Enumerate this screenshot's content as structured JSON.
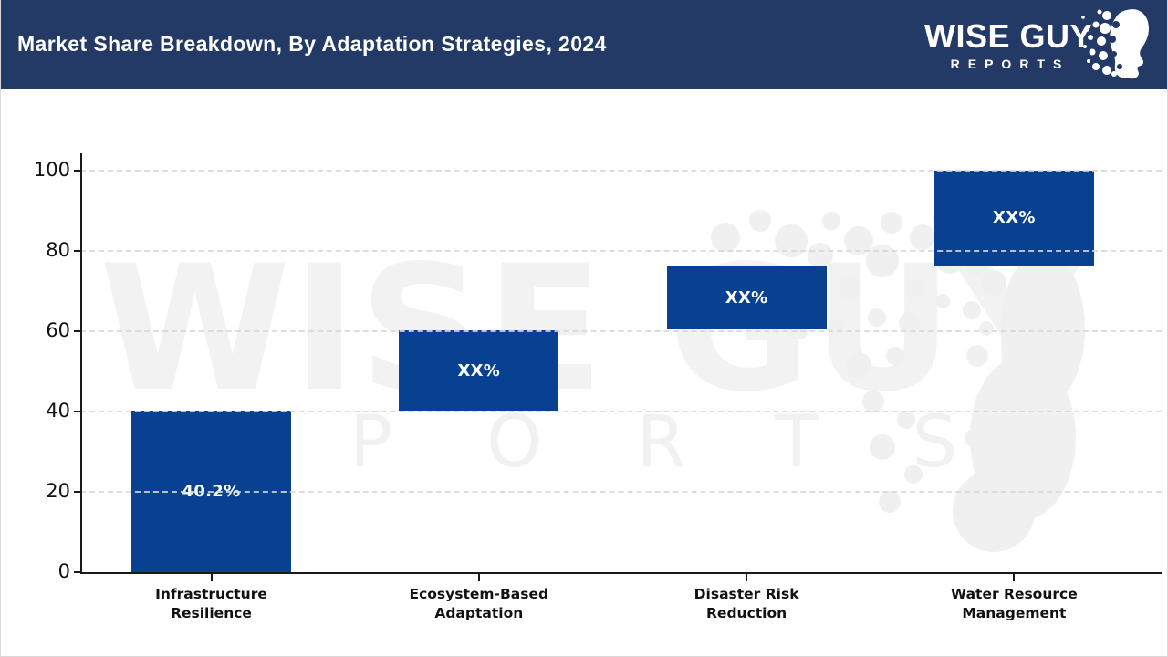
{
  "header": {
    "title": "Market Share Breakdown, By Adaptation Strategies, 2024",
    "logo": {
      "line1": "WISE GUY",
      "line2": "REPORTS"
    }
  },
  "watermark": {
    "line1": "WISE GUY",
    "line2": "PORTS"
  },
  "colors": {
    "header_bg": "#243a66",
    "bar": "#084191",
    "bar_label": "#ffffff",
    "grid": "#d8d8d8",
    "axis": "#1a1a1a",
    "watermark": "#f2f2f2"
  },
  "chart_data": {
    "type": "bar",
    "subtype": "waterfall",
    "title": "Market Share Breakdown, By Adaptation Strategies, 2024",
    "categories": [
      {
        "line1": "Infrastructure",
        "line2": "Resilience"
      },
      {
        "line1": "Ecosystem-Based",
        "line2": "Adaptation"
      },
      {
        "line1": "Disaster Risk",
        "line2": "Reduction"
      },
      {
        "line1": "Water Resource",
        "line2": "Management"
      }
    ],
    "segments": [
      {
        "category": "Infrastructure Resilience",
        "start": 0,
        "end": 40.2,
        "label": "40.2%"
      },
      {
        "category": "Ecosystem-Based Adaptation",
        "start": 40.2,
        "end": 60.2,
        "label": "XX%"
      },
      {
        "category": "Disaster Risk Reduction",
        "start": 60.4,
        "end": 76.4,
        "label": "XX%"
      },
      {
        "category": "Water Resource Management",
        "start": 76.4,
        "end": 100,
        "label": "XX%"
      }
    ],
    "yticks": [
      0,
      20,
      40,
      60,
      80,
      100
    ],
    "ylim": [
      0,
      104
    ],
    "xlabel": "",
    "ylabel": "",
    "grid": {
      "axis": "y",
      "style": "dashed"
    },
    "legend": "none"
  }
}
